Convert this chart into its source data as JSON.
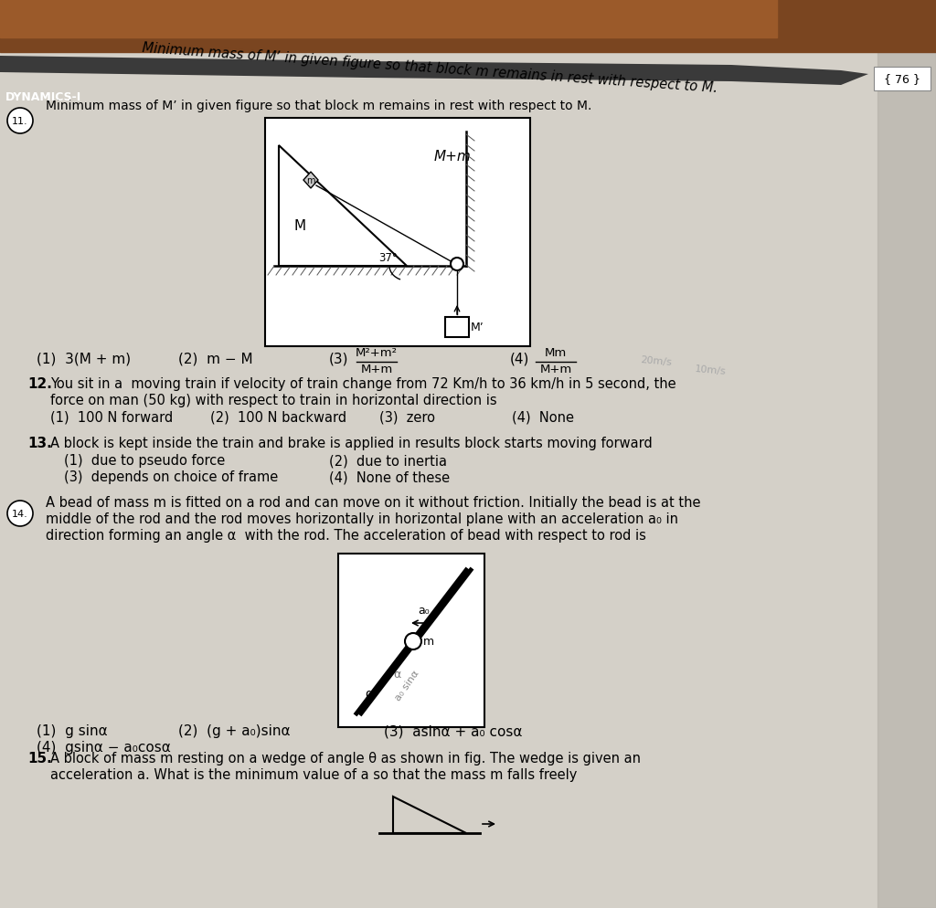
{
  "page_bg": "#d4d0c8",
  "white": "#ffffff",
  "header_bar_color": "#4a4a4a",
  "header_text": "DYNAMICS-I",
  "page_num": "{ 76 }",
  "q11_header": "Minimum mass of Mʼ in given figure so that block m remains in rest with respect to M.",
  "q11_opt1": "(1)  3(M + m)",
  "q11_opt2": "(2)  m − M",
  "q11_opt3_pre": "(3)",
  "q11_opt3_num": "M²+m²",
  "q11_opt3_den": "M+m",
  "q11_opt4_pre": "(4)",
  "q11_opt4_num": "Mm",
  "q11_opt4_den": "M+m",
  "q12_text1": "You sit in a  moving train if velocity of train change from 72 Km/h to 36 km/h in 5 second, the",
  "q12_text2": "force on man (50 kg) with respect to train in horizontal direction is",
  "q12_o1": "(1)  100 N forward",
  "q12_o2": "(2)  100 N backward",
  "q12_o3": "(3)  zero",
  "q12_o4": "(4)  None",
  "q13_text": "A block is kept inside the train and brake is applied in results block starts moving forward",
  "q13_o1": "(1)  due to pseudo force",
  "q13_o2": "(2)  due to inertia",
  "q13_o3": "(3)  depends on choice of frame",
  "q13_o4": "(4)  None of these",
  "q14_text1": "A bead of mass m is fitted on a rod and can move on it without friction. Initially the bead is at the",
  "q14_text2": "middle of the rod and the rod moves horizontally in horizontal plane with an acceleration a₀ in",
  "q14_text3": "direction forming an angle α  with the rod. The acceleration of bead with respect to rod is",
  "q14_o1": "(1)  g sinα",
  "q14_o2": "(2)  (g + a₀)sinα",
  "q14_o3": "(3)  asinα + a₀ cosα",
  "q14_o4": "(4)  gsinα − a₀cosα",
  "q15_text1": "A block of mass m resting on a wedge of angle θ as shown in fig. The wedge is given an",
  "q15_text2": "acceleration a. What is the minimum value of a so that the mass m falls freely"
}
